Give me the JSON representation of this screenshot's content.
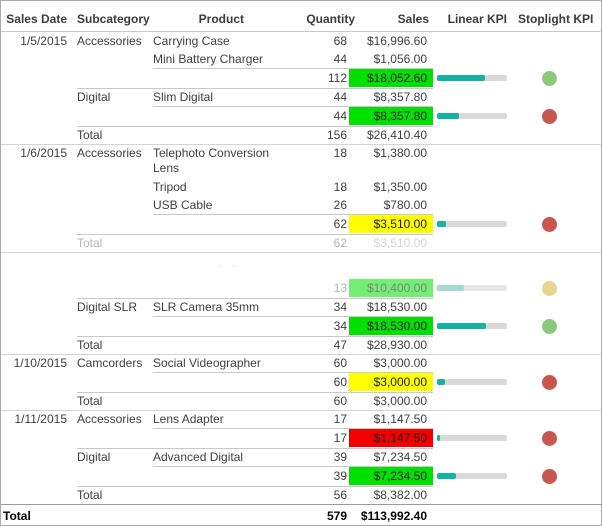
{
  "table": {
    "headers": [
      "Sales Date",
      "Subcategory",
      "Product",
      "Quantity",
      "Sales",
      "Linear KPI",
      "Stoplight KPI"
    ],
    "colors": {
      "green_cell": "#00e100",
      "yellow_cell": "#ffff00",
      "red_cell": "#f20000",
      "bar_fill": "#12b3a2",
      "bar_track": "#d9d9d9",
      "light_green": "#8cc97d",
      "light_yellow": "#dcc564",
      "light_red": "#c9574f"
    },
    "rows": [
      {
        "date": "1/5/2015",
        "sub": "Accessories",
        "product": "Carrying Case",
        "qty": "68",
        "sales": "$16,996.60",
        "type": "detail",
        "line": "none"
      },
      {
        "product": "Mini Battery Charger",
        "qty": "44",
        "sales": "$1,056.00",
        "type": "detail",
        "line": "none"
      },
      {
        "qty": "112",
        "sales": "$18,052.60",
        "type": "subtotal",
        "cell": "green",
        "kpi": 68,
        "light": "green",
        "line": "product"
      },
      {
        "sub": "Digital",
        "product": "Slim Digital",
        "qty": "44",
        "sales": "$8,357.80",
        "type": "detail",
        "line": "subcategory"
      },
      {
        "qty": "44",
        "sales": "$8,357.80",
        "type": "subtotal",
        "cell": "green",
        "kpi": 32,
        "light": "red",
        "line": "product"
      },
      {
        "sub": "Total",
        "qty": "156",
        "sales": "$26,410.40",
        "type": "total",
        "line": "subcategory"
      },
      {
        "date": "1/6/2015",
        "sub": "Accessories",
        "product": "Telephoto Conversion Lens",
        "qty": "18",
        "sales": "$1,380.00",
        "type": "detail",
        "line": "full",
        "twoline": true
      },
      {
        "product": "Tripod",
        "qty": "18",
        "sales": "$1,350.00",
        "type": "detail",
        "line": "none"
      },
      {
        "product": "USB Cable",
        "qty": "26",
        "sales": "$780.00",
        "type": "detail",
        "line": "none"
      },
      {
        "qty": "62",
        "sales": "$3,510.00",
        "type": "subtotal",
        "cell": "yellow",
        "kpi": 13,
        "light": "red",
        "line": "product"
      },
      {
        "sub": "Total",
        "qty": "62",
        "sales": "$3,510.00",
        "type": "total",
        "line": "subcategory",
        "faded": true
      },
      {
        "type": "gap",
        "line": "full",
        "smudge": "· ·"
      },
      {
        "qty": "13",
        "sales": "$10,400.00",
        "type": "subtotal",
        "cell": "green",
        "kpi": 39,
        "light": "yellow",
        "line": "none",
        "faded": true
      },
      {
        "sub": "Digital SLR",
        "product": "SLR Camera 35mm",
        "qty": "34",
        "sales": "$18,530.00",
        "type": "detail",
        "line": "subcategory"
      },
      {
        "qty": "34",
        "sales": "$18,530.00",
        "type": "subtotal",
        "cell": "green",
        "kpi": 70,
        "light": "green",
        "line": "product"
      },
      {
        "sub": "Total",
        "qty": "47",
        "sales": "$28,930.00",
        "type": "total",
        "line": "subcategory"
      },
      {
        "date": "1/10/2015",
        "sub": "Camcorders",
        "product": "Social Videographer",
        "qty": "60",
        "sales": "$3,000.00",
        "type": "detail",
        "line": "full"
      },
      {
        "qty": "60",
        "sales": "$3,000.00",
        "type": "subtotal",
        "cell": "yellow",
        "kpi": 11,
        "light": "red",
        "line": "product"
      },
      {
        "sub": "Total",
        "qty": "60",
        "sales": "$3,000.00",
        "type": "total",
        "line": "subcategory"
      },
      {
        "date": "1/11/2015",
        "sub": "Accessories",
        "product": "Lens Adapter",
        "qty": "17",
        "sales": "$1,147.50",
        "type": "detail",
        "line": "full"
      },
      {
        "qty": "17",
        "sales": "$1,147.50",
        "type": "subtotal",
        "cell": "red",
        "kpi": 4,
        "light": "red",
        "line": "product"
      },
      {
        "sub": "Digital",
        "product": "Advanced Digital",
        "qty": "39",
        "sales": "$7,234.50",
        "type": "detail",
        "line": "subcategory"
      },
      {
        "qty": "39",
        "sales": "$7,234.50",
        "type": "subtotal",
        "cell": "green",
        "kpi": 27,
        "light": "red",
        "line": "product"
      },
      {
        "sub": "Total",
        "qty": "56",
        "sales": "$8,382.00",
        "type": "total",
        "line": "subcategory"
      },
      {
        "date": "Total",
        "qty": "579",
        "sales": "$113,992.40",
        "type": "grand",
        "line": "full"
      }
    ]
  }
}
